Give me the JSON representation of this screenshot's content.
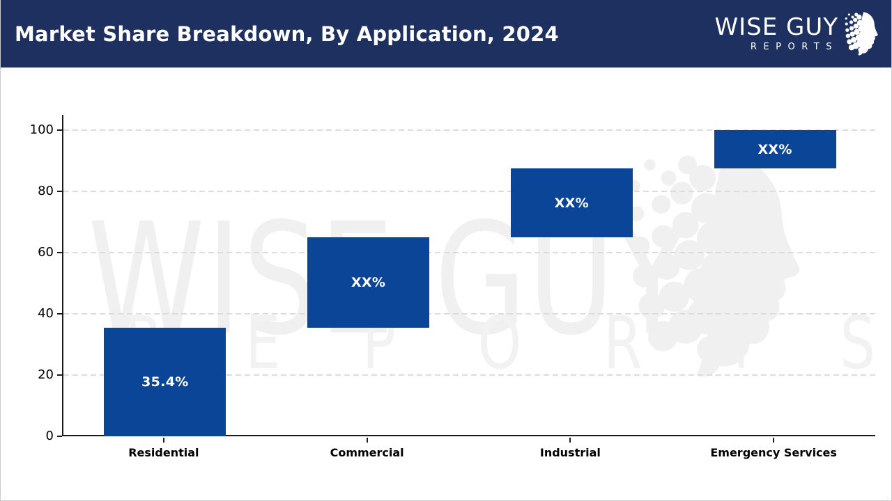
{
  "header": {
    "title": "Market Share Breakdown, By Application, 2024",
    "logo": {
      "name": "WISE GUY",
      "subname": "REPORTS"
    }
  },
  "watermark": {
    "line1": "WISE GUY",
    "line2": "R E P O R T S"
  },
  "chart_data": {
    "type": "bar",
    "subtype": "waterfall-stacked-segments",
    "title": "Market Share Breakdown, By Application, 2024",
    "categories": [
      "Residential",
      "Commercial",
      "Industrial",
      "Emergency Services"
    ],
    "segments": [
      {
        "category": "Residential",
        "start": 0,
        "end": 35.4,
        "label": "35.4%"
      },
      {
        "category": "Commercial",
        "start": 35.4,
        "end": 65,
        "label": "XX%"
      },
      {
        "category": "Industrial",
        "start": 65,
        "end": 87.5,
        "label": "XX%"
      },
      {
        "category": "Emergency Services",
        "start": 87.5,
        "end": 100,
        "label": "XX%"
      }
    ],
    "yticks": [
      0,
      20,
      40,
      60,
      80,
      100
    ],
    "ylim": [
      0,
      105
    ],
    "xlabel": "",
    "ylabel": "",
    "grid": "horizontal-dashed",
    "legend": "none",
    "bar_color": "#0b4598",
    "bar_label_color": "#ffffff"
  },
  "colors": {
    "header_bg": "#1e3060",
    "axis": "#1a1a1a",
    "grid": "#dcdcdc",
    "page_border": "#cccccc",
    "watermark": "#f0f0f0"
  }
}
